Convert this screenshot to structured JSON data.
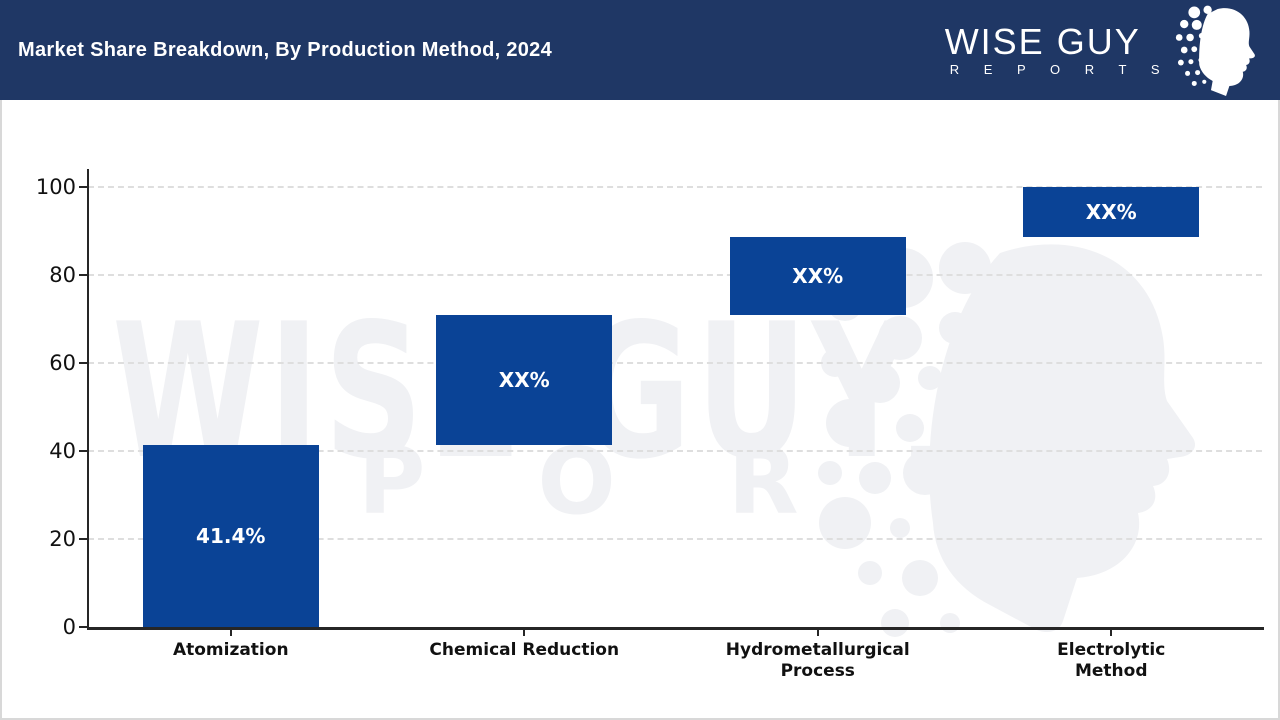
{
  "header": {
    "title": "Market Share Breakdown, By Production Method, 2024",
    "logo": {
      "line1": "WISE GUY",
      "line2": "R E P O R T S"
    }
  },
  "watermark": {
    "line1": "WISE GUY",
    "line2": "P O R T S"
  },
  "colors": {
    "header_bg": "#1f3765",
    "bar_color": "#0a4396",
    "bar_label_color": "#ffffff",
    "grid_color": "#dedede",
    "axis_color": "#262626",
    "watermark_color": "#f0f1f4"
  },
  "chart_data": {
    "type": "bar",
    "subtype": "waterfall",
    "title": "Market Share Breakdown, By Production Method, 2024",
    "categories": [
      "Atomization",
      "Chemical Reduction",
      "Hydrometallurgical\nProcess",
      "Electrolytic\nMethod"
    ],
    "segments": [
      {
        "category": "Atomization",
        "start": 0,
        "end": 41.4,
        "label": "41.4%"
      },
      {
        "category": "Chemical Reduction",
        "start": 41.4,
        "end": 71.0,
        "label": "XX%"
      },
      {
        "category": "Hydrometallurgical Process",
        "start": 71.0,
        "end": 88.6,
        "label": "XX%"
      },
      {
        "category": "Electrolytic Method",
        "start": 88.6,
        "end": 100.0,
        "label": "XX%"
      }
    ],
    "xlabel": "",
    "ylabel": "",
    "yticks": [
      0,
      20,
      40,
      60,
      80,
      100
    ],
    "ylim": [
      0,
      100
    ],
    "grid": "dashed-horizontal",
    "legend": "none"
  }
}
